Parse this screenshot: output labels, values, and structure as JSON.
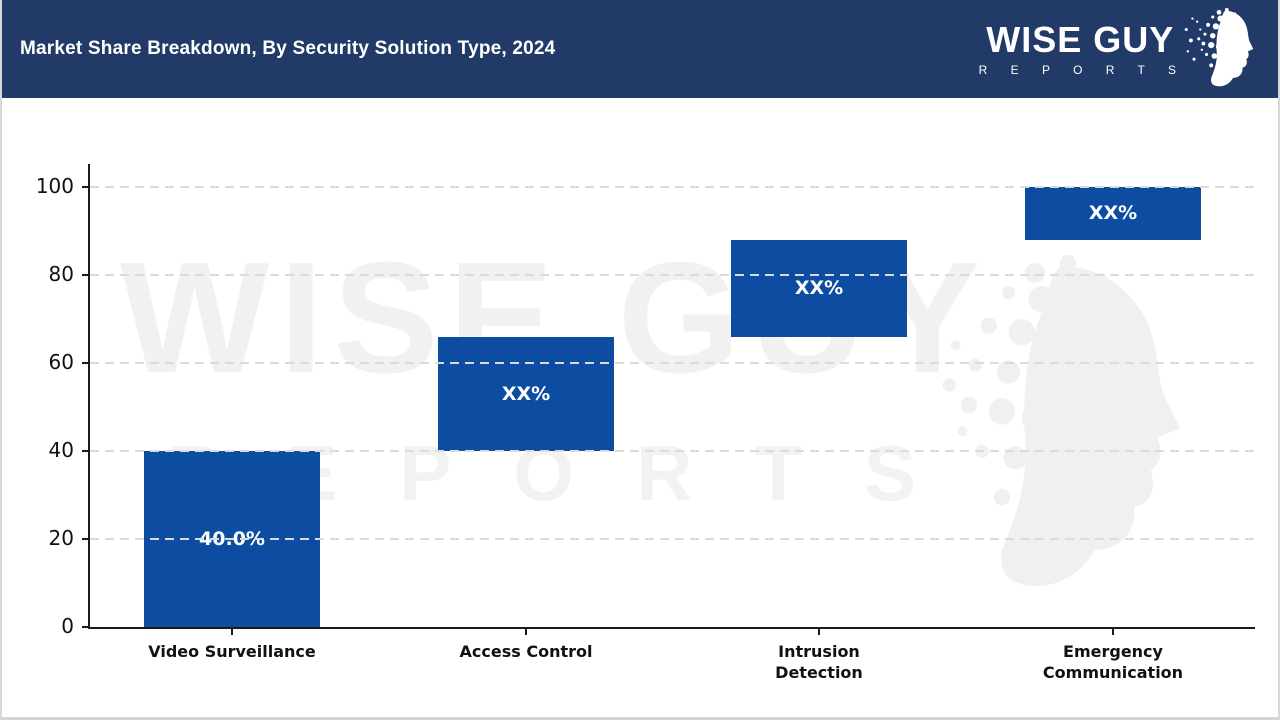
{
  "header": {
    "title": "Market Share Breakdown, By Security Solution Type, 2024",
    "bg_color": "#213a68",
    "logo": {
      "line1": "WISE GUY",
      "line2": "R E P O R T S"
    }
  },
  "watermark": {
    "line1": "WISE GUY",
    "line2": "REPORTS"
  },
  "chart_data": {
    "type": "bar",
    "subtype": "waterfall",
    "title": "Market Share Breakdown, By Security Solution Type, 2024",
    "categories": [
      "Video Surveillance",
      "Access Control",
      "Intrusion\nDetection",
      "Emergency\nCommunication"
    ],
    "series": [
      {
        "name": "Market Share (%)",
        "segments": [
          {
            "category": "Video Surveillance",
            "start": 0,
            "end": 40,
            "label": "40.0%"
          },
          {
            "category": "Access Control",
            "start": 40,
            "end": 66,
            "label": "XX%"
          },
          {
            "category": "Intrusion Detection",
            "start": 66,
            "end": 88,
            "label": "XX%"
          },
          {
            "category": "Emergency Communication",
            "start": 88,
            "end": 100,
            "label": "XX%"
          }
        ]
      }
    ],
    "xlabel": "",
    "ylabel": "",
    "ylim": [
      0,
      100
    ],
    "yticks": [
      0,
      20,
      40,
      60,
      80,
      100
    ],
    "grid": "horizontal-dashed",
    "legend": "none",
    "bar_color": "#0c4da2",
    "bar_label_color": "#ffffff",
    "axis_color": "#1a1a1a",
    "grid_color": "#dbdbdb"
  }
}
